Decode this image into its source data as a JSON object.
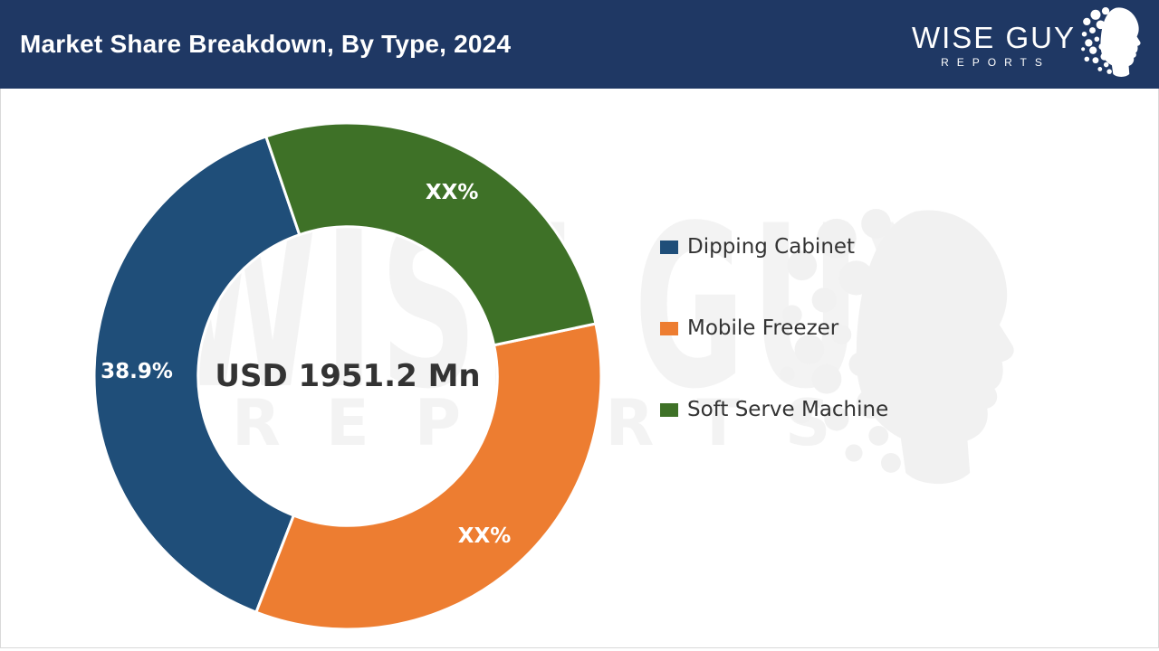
{
  "header": {
    "title": "Market Share Breakdown, By Type, 2024",
    "logo": {
      "name": "WISE GUY",
      "tagline": "REPORTS"
    }
  },
  "watermark": {
    "line1": "WISE GUY",
    "line2": "REPORTS"
  },
  "chart_data": {
    "type": "pie",
    "subtype": "donut",
    "title": "Market Share Breakdown, By Type, 2024",
    "center_text": "USD 1951.2 Mn",
    "start_angle_deg": 108.8,
    "direction": "counterclockwise",
    "inner_radius_ratio": 0.59,
    "legend_position": "right",
    "segments": [
      {
        "label": "Dipping Cabinet",
        "display_value": "38.9%",
        "value_pct": 38.9,
        "color": "#1F4E79"
      },
      {
        "label": "Mobile Freezer",
        "display_value": "XX%",
        "value_pct": 34.2,
        "color": "#ED7D31"
      },
      {
        "label": "Soft Serve Machine",
        "display_value": "XX%",
        "value_pct": 26.9,
        "color": "#3E7127"
      }
    ]
  },
  "colors": {
    "header_background": "#1F3864",
    "slice_label_text": "#FFFFFF",
    "center_text_color": "#333333",
    "legend_text_color": "#333333",
    "watermark_color": "#F2F2F2",
    "border_color": "#D9D9D9"
  }
}
